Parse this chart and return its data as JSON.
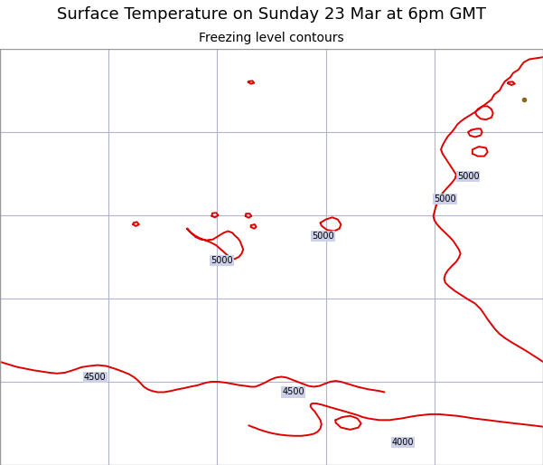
{
  "title": "Surface Temperature on Sunday 23 Mar at 6pm GMT",
  "subtitle": "Freezing level contours",
  "map_bg": "#ccd0e8",
  "title_bg": "#ffffff",
  "contour_color": "#dd0000",
  "grid_color": "#b0b4cc",
  "label_color": "#000000",
  "figsize": [
    6.01,
    5.14
  ],
  "dpi": 100,
  "title_fontsize": 13,
  "subtitle_fontsize": 10,
  "contour_linewidth": 1.4
}
